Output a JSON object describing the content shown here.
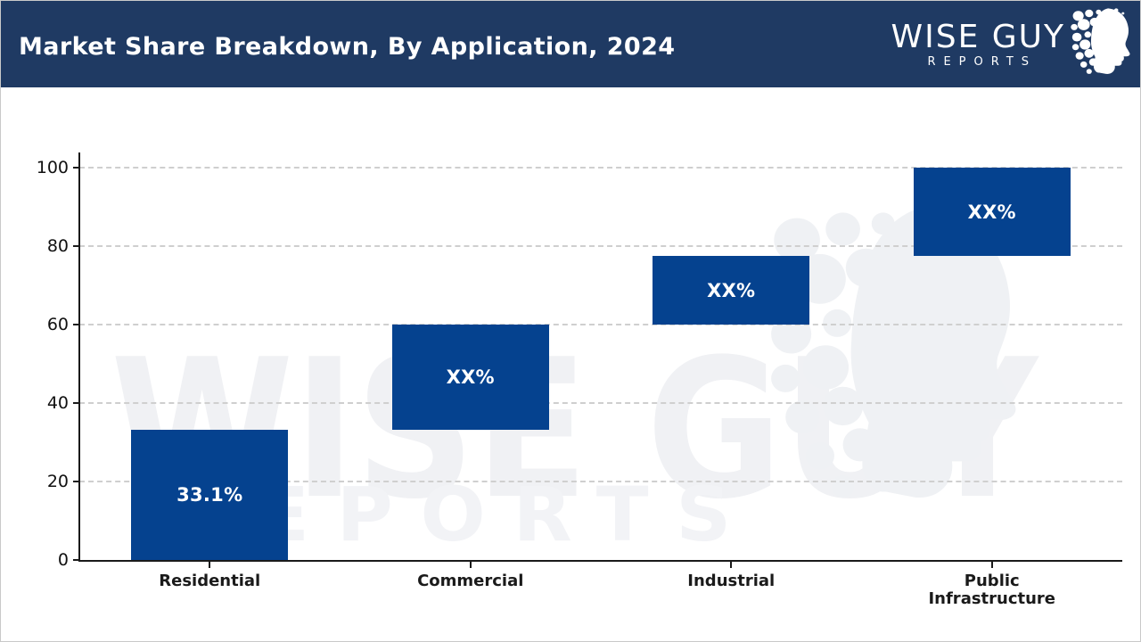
{
  "header": {
    "title": "Market Share Breakdown, By Application, 2024",
    "logo": {
      "line1": "WISE GUY",
      "line2": "REPORTS"
    }
  },
  "watermark": {
    "line1": "WISE GUY",
    "line2": "REPORTS"
  },
  "chart_data": {
    "type": "bar",
    "subtype": "waterfall",
    "title": "Market Share Breakdown, By Application, 2024",
    "categories": [
      "Residential",
      "Commercial",
      "Industrial",
      "Public Infrastructure"
    ],
    "segments": [
      {
        "category": "Residential",
        "start": 0,
        "end": 33.1,
        "label": "33.1%"
      },
      {
        "category": "Commercial",
        "start": 33.1,
        "end": 60.0,
        "label": "XX%"
      },
      {
        "category": "Industrial",
        "start": 60.0,
        "end": 77.5,
        "label": "XX%"
      },
      {
        "category": "Public Infrastructure",
        "start": 77.5,
        "end": 100.0,
        "label": "XX%"
      }
    ],
    "unit": "percent",
    "yticks": [
      0,
      20,
      40,
      60,
      80,
      100
    ],
    "ylim": [
      0,
      104
    ],
    "grid": "horizontal-dashed",
    "legend": "none",
    "bar_color": "#05428f",
    "bar_label_color": "#ffffff",
    "axis_color": "#1a1a1a",
    "gridline_color": "#cfcfcf",
    "header_color": "#1f3a63"
  }
}
